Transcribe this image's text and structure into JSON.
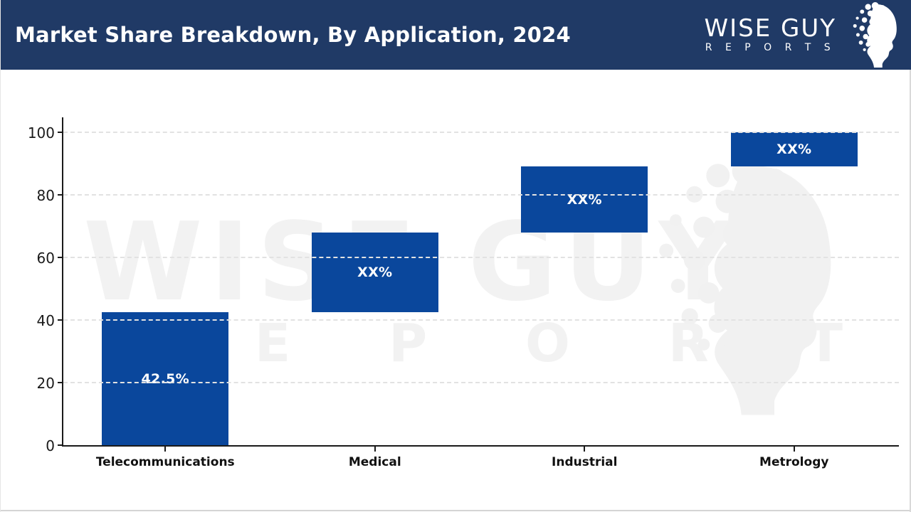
{
  "header": {
    "title": "Market Share Breakdown, By Application, 2024",
    "logo": {
      "line1": "WISE GUY",
      "line2": "R E P O R T S",
      "face_icon": "dotted-head-profile"
    }
  },
  "watermark": {
    "line1": "WISE GUY",
    "line2": "R E P O R T S",
    "face_icon": "dotted-head-profile"
  },
  "colors": {
    "header_bg": "#203a66",
    "bar_fill": "#0a479c",
    "bar_label_text": "#ffffff",
    "axis": "#1a1a1a",
    "gridline": "#e2e2e2",
    "watermark": "#f2f2f2",
    "page_bg": "#ffffff"
  },
  "chart_data": {
    "type": "bar",
    "subtype": "floating-waterfall",
    "title": "Market Share Breakdown, By Application, 2024",
    "xlabel": "",
    "ylabel": "",
    "categories": [
      "Telecommunications",
      "Medical",
      "Industrial",
      "Metrology"
    ],
    "series": [
      {
        "name": "Market share (%)",
        "segments": [
          {
            "category": "Telecommunications",
            "start": 0,
            "end": 42.5,
            "label": "42.5%"
          },
          {
            "category": "Medical",
            "start": 42.5,
            "end": 68,
            "label": "XX%"
          },
          {
            "category": "Industrial",
            "start": 68,
            "end": 89,
            "label": "XX%"
          },
          {
            "category": "Metrology",
            "start": 89,
            "end": 100,
            "label": "XX%"
          }
        ]
      }
    ],
    "yticks": [
      0,
      20,
      40,
      60,
      80,
      100
    ],
    "ylim": [
      0,
      104.5
    ],
    "grid": "horizontal-dashed-over-bars",
    "legend": "none"
  }
}
